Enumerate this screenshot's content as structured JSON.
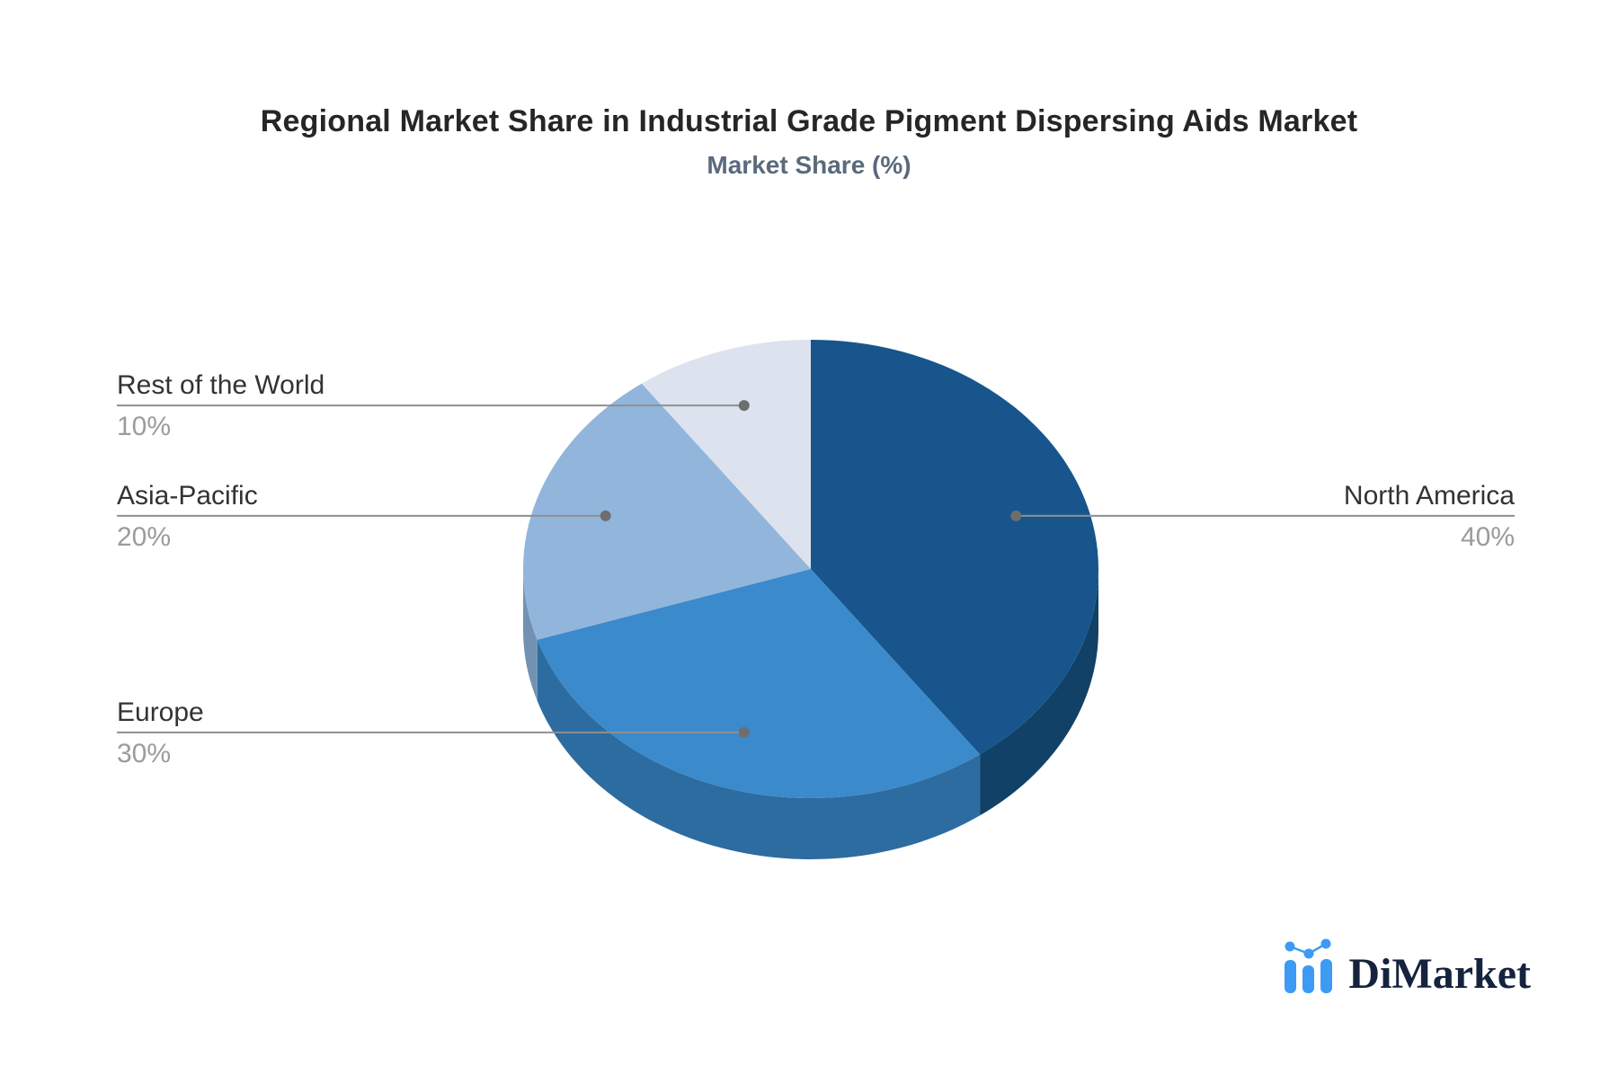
{
  "header": {
    "title": "Regional Market Share in Industrial Grade Pigment Dispersing Aids Market",
    "subtitle": "Market Share (%)"
  },
  "chart_data": {
    "type": "pie",
    "title": "Regional Market Share in Industrial Grade Pigment Dispersing Aids Market",
    "subtitle": "Market Share (%)",
    "unit": "%",
    "style": "3d-pie",
    "start_angle_deg": 0,
    "direction": "clockwise",
    "legend_position": "callout-labels",
    "slices": [
      {
        "name": "North America",
        "value": 40,
        "label": "40%",
        "color": "#17558C",
        "side_color": "#114166"
      },
      {
        "name": "Europe",
        "value": 30,
        "label": "30%",
        "color": "#3B8ACB",
        "side_color": "#2D6CA0"
      },
      {
        "name": "Asia-Pacific",
        "value": 20,
        "label": "20%",
        "color": "#92B5DB",
        "side_color": "#7392B3"
      },
      {
        "name": "Rest of the World",
        "value": 10,
        "label": "10%",
        "color": "#DCE2EE",
        "side_color": "#AEB8CC"
      }
    ]
  },
  "branding": {
    "logo_text": "DiMarket",
    "logo_blue": "#3D9AF5",
    "logo_navy": "#16233E"
  }
}
